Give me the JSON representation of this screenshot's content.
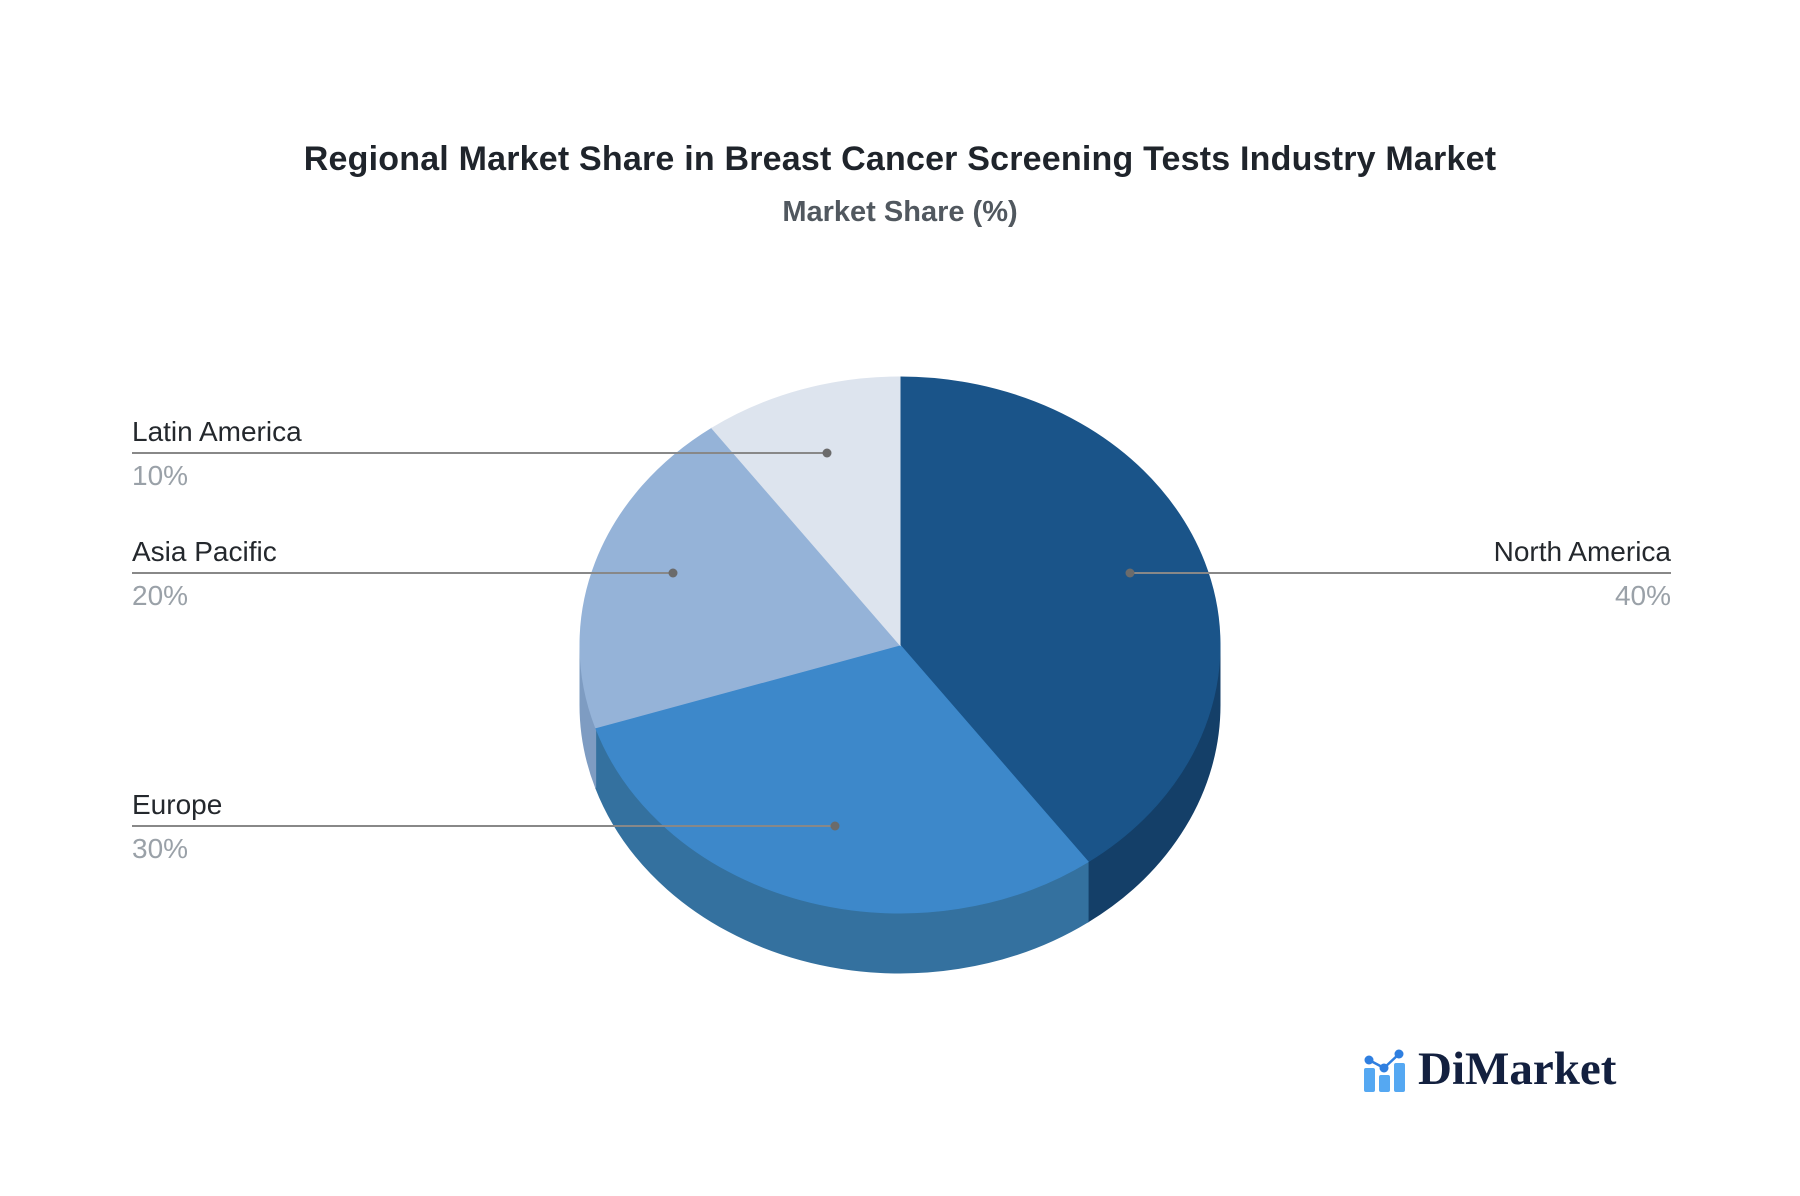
{
  "title": "Regional Market Share in Breast Cancer Screening Tests Industry Market",
  "subtitle": "Market Share (%)",
  "logo": {
    "text": "DiMarket"
  },
  "chart_data": {
    "type": "pie",
    "style": "3d",
    "title": "Regional Market Share in Breast Cancer Screening Tests Industry Market",
    "subtitle": "Market Share (%)",
    "unit": "%",
    "start_angle_deg": 0,
    "direction": "clockwise",
    "legend_position": "callout-labels",
    "slices": [
      {
        "label": "North America",
        "value": 40,
        "display": "40%",
        "color": "#1a5489",
        "side_color": "#143f68"
      },
      {
        "label": "Europe",
        "value": 30,
        "display": "30%",
        "color": "#3d88ca",
        "side_color": "#34719f"
      },
      {
        "label": "Asia Pacific",
        "value": 20,
        "display": "20%",
        "color": "#95b3d8",
        "side_color": "#7e9cc2"
      },
      {
        "label": "Latin America",
        "value": 10,
        "display": "10%",
        "color": "#dde4ee",
        "side_color": "#c6cfdd"
      }
    ],
    "callout_line_color": "#888888",
    "callout_dot_color": "#6b6b6b"
  }
}
